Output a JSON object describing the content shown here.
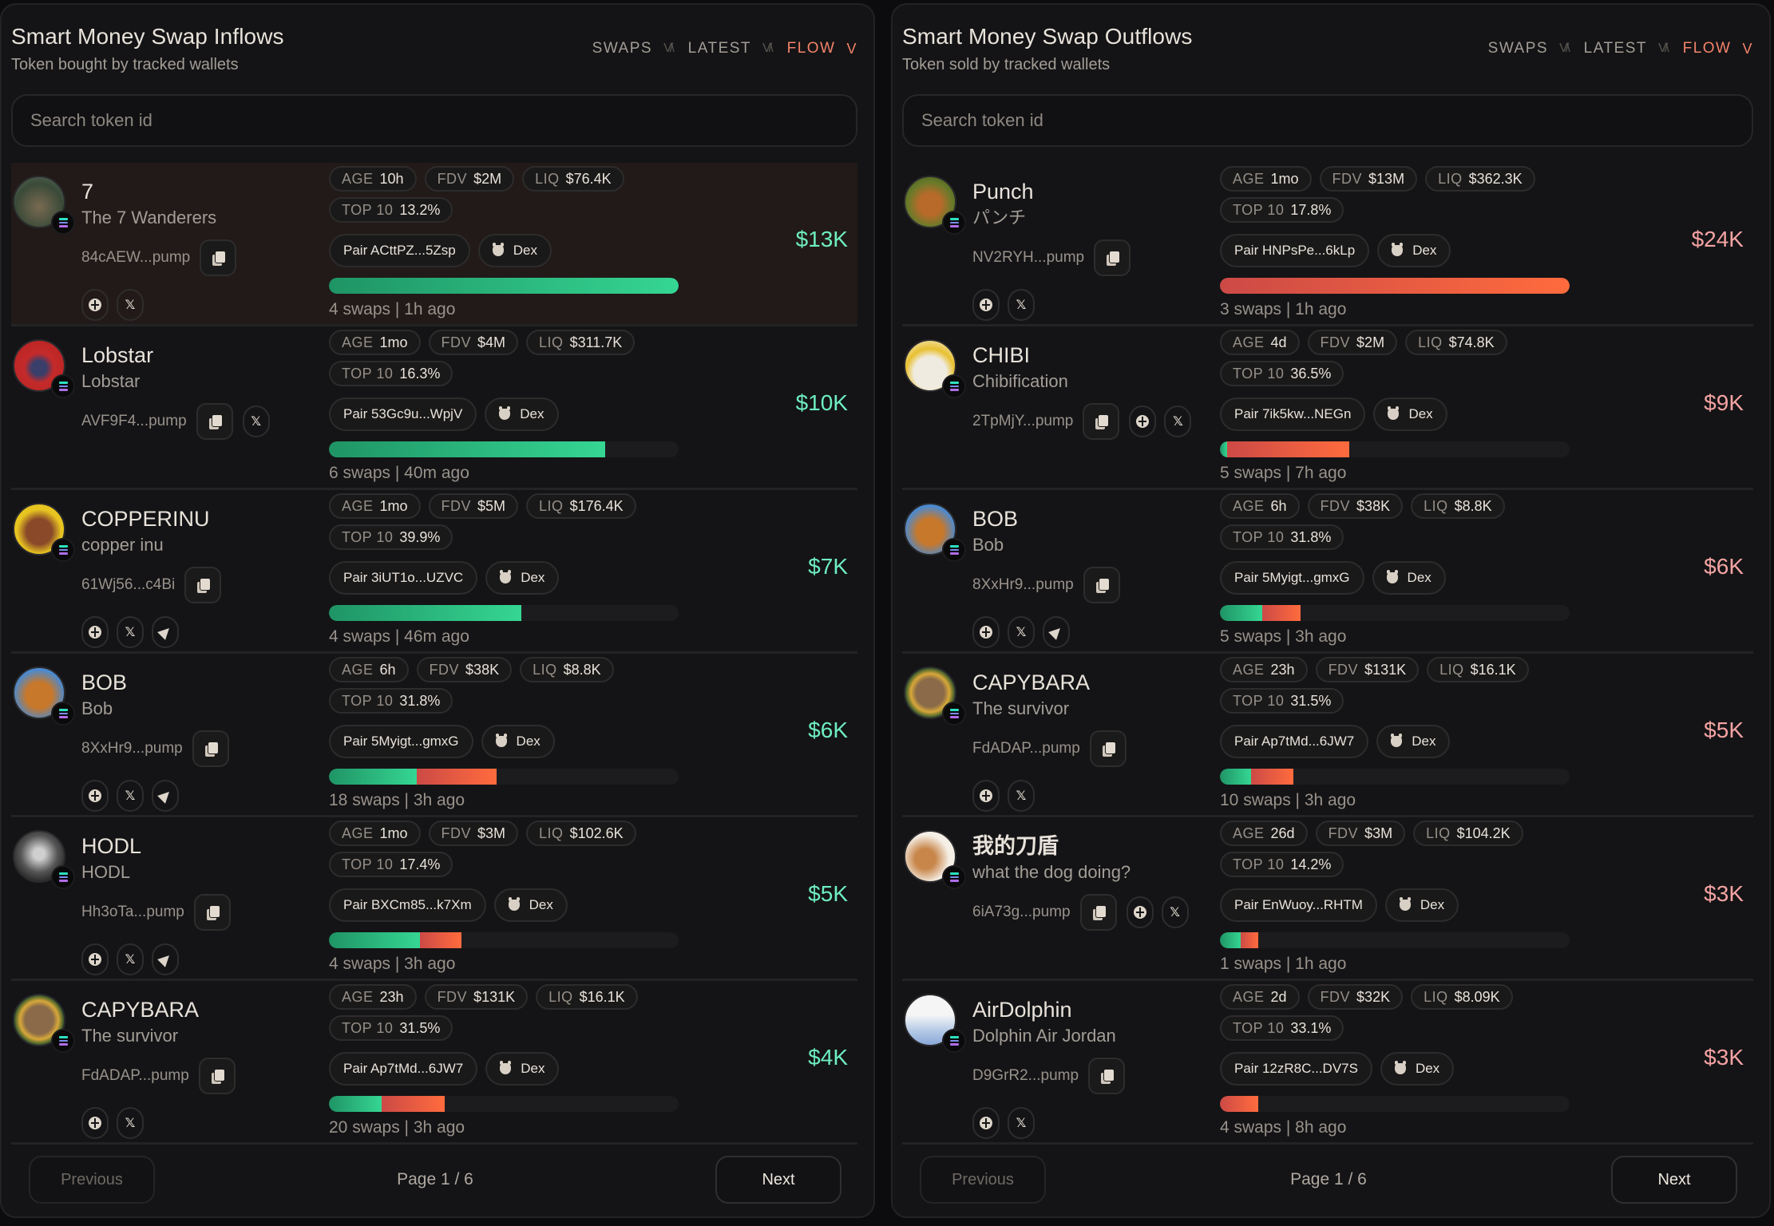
{
  "panels": [
    {
      "title": "Smart Money Swap Inflows",
      "subtitle": "Token bought by tracked wallets",
      "sort": {
        "swaps": "SWAPS",
        "latest": "LATEST",
        "flow": "FLOW",
        "active": "FLOW"
      },
      "search_placeholder": "Search token id",
      "direction": "in",
      "rows": [
        {
          "symbol": "7",
          "name": "The 7 Wanderers",
          "address": "84cAEW...pump",
          "age": "10h",
          "fdv": "$2M",
          "liq": "$76.4K",
          "top10": "13.2%",
          "pair": "Pair ACttPZ...5Zsp",
          "dex": "Dex",
          "amount": "$13K",
          "swaps": "4 swaps | 1h ago",
          "bar_green": 100,
          "bar_red": 0,
          "socials": [
            "web",
            "x"
          ],
          "highlight": true
        },
        {
          "symbol": "Lobstar",
          "name": "Lobstar",
          "address": "AVF9F4...pump",
          "age": "1mo",
          "fdv": "$4M",
          "liq": "$311.7K",
          "top10": "16.3%",
          "pair": "Pair 53Gc9u...WpjV",
          "dex": "Dex",
          "amount": "$10K",
          "swaps": "6 swaps | 40m ago",
          "bar_green": 79,
          "bar_red": 0,
          "socials_inline": [
            "x"
          ],
          "socials": []
        },
        {
          "symbol": "COPPERINU",
          "name": "copper inu",
          "address": "61Wj56...c4Bi",
          "age": "1mo",
          "fdv": "$5M",
          "liq": "$176.4K",
          "top10": "39.9%",
          "pair": "Pair 3iUT1o...UZVC",
          "dex": "Dex",
          "amount": "$7K",
          "swaps": "4 swaps | 46m ago",
          "bar_green": 55,
          "bar_red": 0,
          "socials": [
            "web",
            "x",
            "telegram"
          ]
        },
        {
          "symbol": "BOB",
          "name": "Bob",
          "address": "8XxHr9...pump",
          "age": "6h",
          "fdv": "$38K",
          "liq": "$8.8K",
          "top10": "31.8%",
          "pair": "Pair 5Myigt...gmxG",
          "dex": "Dex",
          "amount": "$6K",
          "swaps": "18 swaps | 3h ago",
          "bar_green": 25,
          "bar_red": 23,
          "socials": [
            "web",
            "x",
            "telegram"
          ]
        },
        {
          "symbol": "HODL",
          "name": "HODL",
          "address": "Hh3oTa...pump",
          "age": "1mo",
          "fdv": "$3M",
          "liq": "$102.6K",
          "top10": "17.4%",
          "pair": "Pair BXCm85...k7Xm",
          "dex": "Dex",
          "amount": "$5K",
          "swaps": "4 swaps | 3h ago",
          "bar_green": 26,
          "bar_red": 12,
          "socials": [
            "web",
            "x",
            "telegram"
          ]
        },
        {
          "symbol": "CAPYBARA",
          "name": "The survivor",
          "address": "FdADAP...pump",
          "age": "23h",
          "fdv": "$131K",
          "liq": "$16.1K",
          "top10": "31.5%",
          "pair": "Pair Ap7tMd...6JW7",
          "dex": "Dex",
          "amount": "$4K",
          "swaps": "20 swaps | 3h ago",
          "bar_green": 15,
          "bar_red": 18,
          "socials": [
            "web",
            "x"
          ]
        }
      ],
      "pagination": {
        "prev": "Previous",
        "page": "Page 1 / 6",
        "next": "Next"
      }
    },
    {
      "title": "Smart Money Swap Outflows",
      "subtitle": "Token sold by tracked wallets",
      "sort": {
        "swaps": "SWAPS",
        "latest": "LATEST",
        "flow": "FLOW",
        "active": "FLOW"
      },
      "search_placeholder": "Search token id",
      "direction": "out",
      "rows": [
        {
          "symbol": "Punch",
          "name": "パンチ",
          "address": "NV2RYH...pump",
          "age": "1mo",
          "fdv": "$13M",
          "liq": "$362.3K",
          "top10": "17.8%",
          "pair": "Pair HNPsPe...6kLp",
          "dex": "Dex",
          "amount": "$24K",
          "swaps": "3 swaps | 1h ago",
          "bar_green": 0,
          "bar_red": 100,
          "socials": [
            "web",
            "x"
          ]
        },
        {
          "symbol": "CHIBI",
          "name": "Chibification",
          "address": "2TpMjY...pump",
          "age": "4d",
          "fdv": "$2M",
          "liq": "$74.8K",
          "top10": "36.5%",
          "pair": "Pair 7ik5kw...NEGn",
          "dex": "Dex",
          "amount": "$9K",
          "swaps": "5 swaps | 7h ago",
          "bar_green": 2,
          "bar_red": 35,
          "socials_inline": [
            "web",
            "x"
          ],
          "socials": []
        },
        {
          "symbol": "BOB",
          "name": "Bob",
          "address": "8XxHr9...pump",
          "age": "6h",
          "fdv": "$38K",
          "liq": "$8.8K",
          "top10": "31.8%",
          "pair": "Pair 5Myigt...gmxG",
          "dex": "Dex",
          "amount": "$6K",
          "swaps": "5 swaps | 3h ago",
          "bar_green": 12,
          "bar_red": 11,
          "socials": [
            "web",
            "x",
            "telegram"
          ]
        },
        {
          "symbol": "CAPYBARA",
          "name": "The survivor",
          "address": "FdADAP...pump",
          "age": "23h",
          "fdv": "$131K",
          "liq": "$16.1K",
          "top10": "31.5%",
          "pair": "Pair Ap7tMd...6JW7",
          "dex": "Dex",
          "amount": "$5K",
          "swaps": "10 swaps | 3h ago",
          "bar_green": 9,
          "bar_red": 12,
          "socials": [
            "web",
            "x"
          ]
        },
        {
          "symbol": "我的刀盾",
          "name": "what the dog doing?",
          "address": "6iA73g...pump",
          "age": "26d",
          "fdv": "$3M",
          "liq": "$104.2K",
          "top10": "14.2%",
          "pair": "Pair EnWuoy...RHTM",
          "dex": "Dex",
          "amount": "$3K",
          "swaps": "1 swaps | 1h ago",
          "bar_green": 6,
          "bar_red": 5,
          "socials_inline": [
            "web",
            "x"
          ],
          "socials": [],
          "cjk": true
        },
        {
          "symbol": "AirDolphin",
          "name": "Dolphin Air Jordan",
          "address": "D9GrR2...pump",
          "age": "2d",
          "fdv": "$32K",
          "liq": "$8.09K",
          "top10": "33.1%",
          "pair": "Pair 12zR8C...DV7S",
          "dex": "Dex",
          "amount": "$3K",
          "swaps": "4 swaps | 8h ago",
          "bar_green": 0,
          "bar_red": 11,
          "socials": [
            "web",
            "x"
          ]
        }
      ],
      "pagination": {
        "prev": "Previous",
        "page": "Page 1 / 6",
        "next": "Next"
      }
    }
  ],
  "labels": {
    "age": "AGE",
    "fdv": "FDV",
    "liq": "LIQ",
    "top10": "TOP 10"
  },
  "icons": {
    "copy": "copy-icon",
    "web": "globe-icon",
    "x": "x-logo-icon",
    "telegram": "telegram-icon",
    "dex": "dexscreener-icon",
    "chain": "solana-icon",
    "sort_dir": "sort-toggle-icon"
  },
  "colors": {
    "inflow": "#6eeec0",
    "outflow": "#f5a3a3",
    "active_sort": "#f2836a",
    "bar_green": "#35d693",
    "bar_red": "#ff6b3d"
  }
}
